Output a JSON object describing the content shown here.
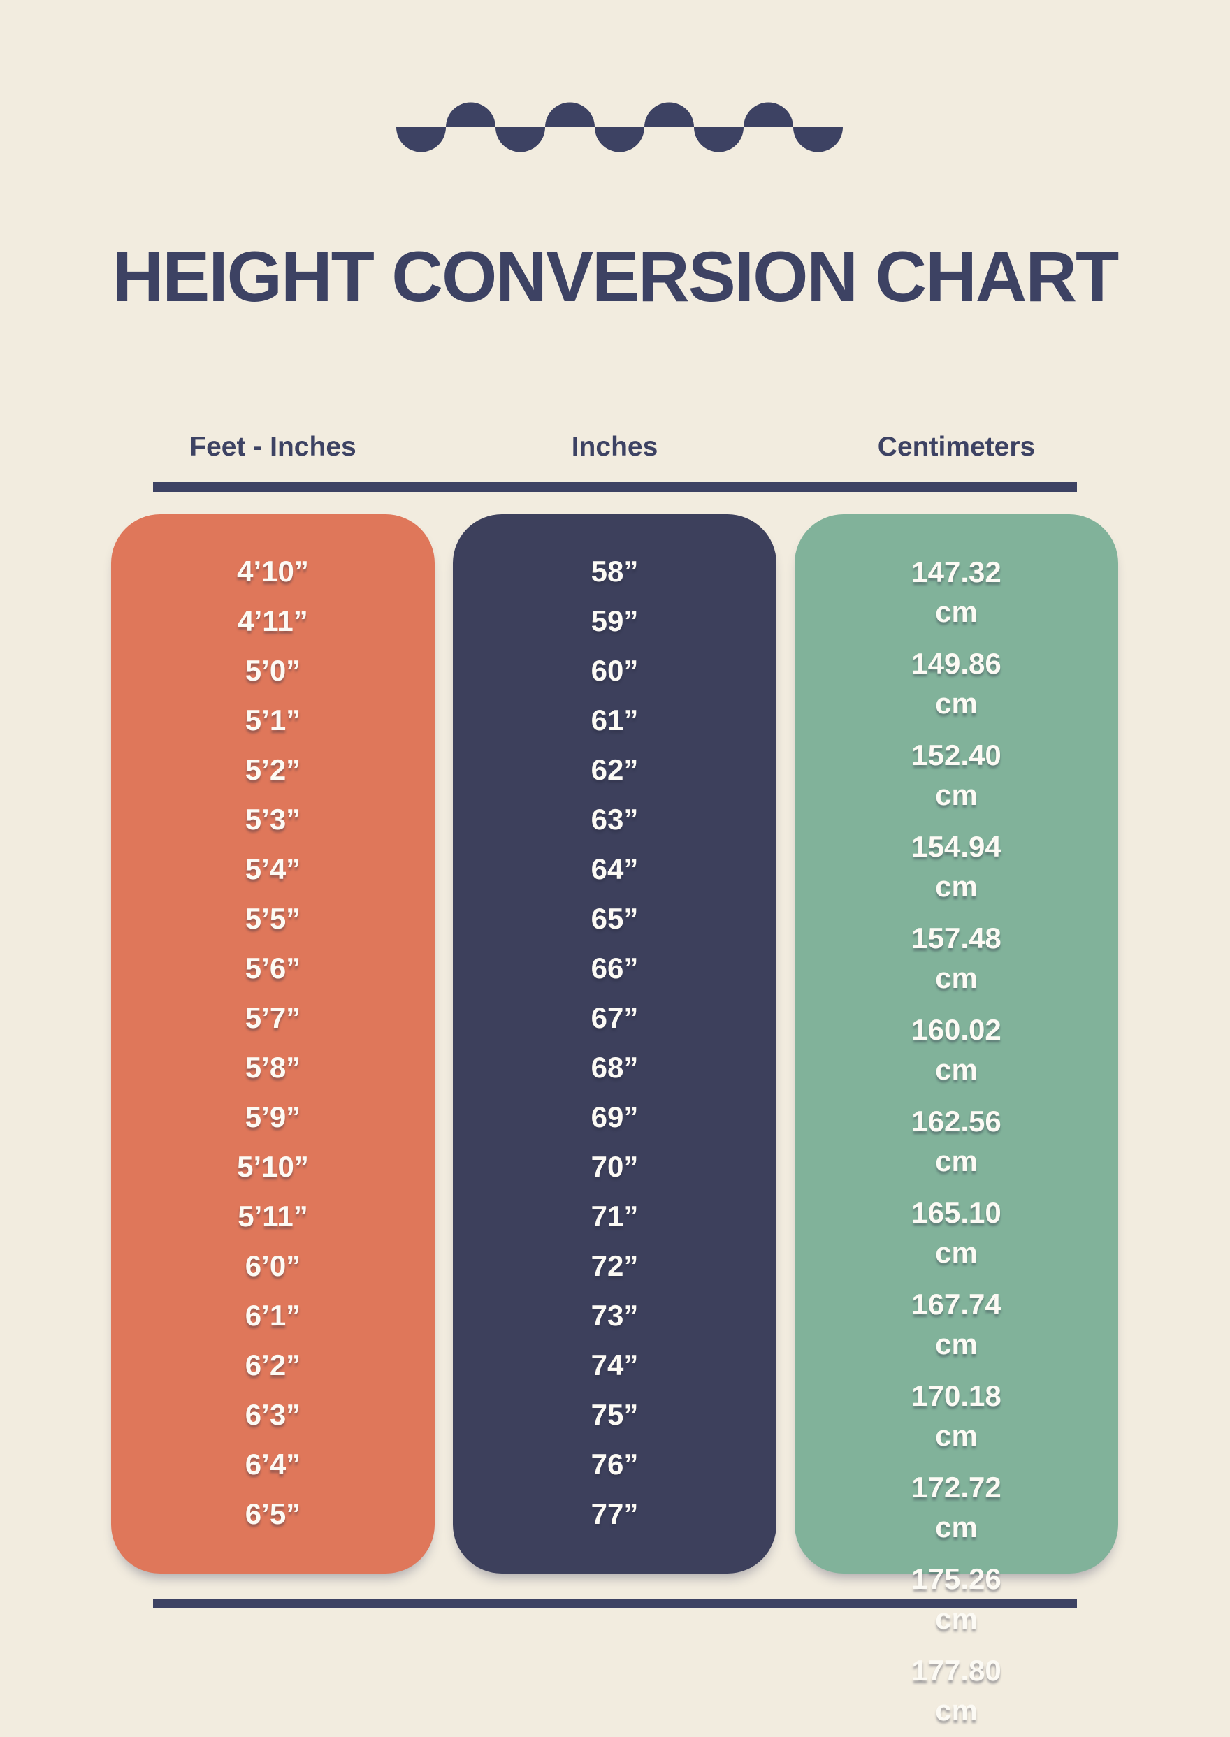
{
  "title": "HEIGHT CONVERSION CHART",
  "colors": {
    "background": "#f2ecdf",
    "ink": "#3d4263",
    "terracotta": "#df775a",
    "navy": "#3d405c",
    "green": "#81b29a",
    "text_on_color": "#fcfaf4"
  },
  "decor": {
    "wave_icon": "wave-scallop",
    "wave_color": "#3d4263"
  },
  "table": {
    "headers": [
      {
        "id": "feet_inches",
        "label": "Feet - Inches"
      },
      {
        "id": "inches",
        "label": "Inches"
      },
      {
        "id": "centimeters",
        "label": "Centimeters"
      }
    ],
    "feet_inches": [
      "4’10”",
      "4’11”",
      "5’0”",
      "5’1”",
      "5’2”",
      "5’3”",
      "5’4”",
      "5’5”",
      "5’6”",
      "5’7”",
      "5’8”",
      "5’9”",
      "5’10”",
      "5’11”",
      "6’0”",
      "6’1”",
      "6’2”",
      "6’3”",
      "6’4”",
      "6’5”"
    ],
    "inches": [
      "58”",
      "59”",
      "60”",
      "61”",
      "62”",
      "63”",
      "64”",
      "65”",
      "66”",
      "67”",
      "68”",
      "69”",
      "70”",
      "71”",
      "72”",
      "73”",
      "74”",
      "75”",
      "76”",
      "77”"
    ],
    "centimeters": [
      [
        "147.32",
        "cm"
      ],
      [
        "149.86",
        "cm"
      ],
      [
        "152.40",
        "cm"
      ],
      [
        "154.94",
        "cm"
      ],
      [
        "157.48",
        "cm"
      ],
      [
        "160.02",
        "cm"
      ],
      [
        "162.56",
        "cm"
      ],
      [
        "165.10",
        "cm"
      ],
      [
        "167.74",
        "cm"
      ],
      [
        "170.18",
        "cm"
      ],
      [
        "172.72",
        "cm"
      ],
      [
        "175.26",
        "cm"
      ],
      [
        "177.80",
        "cm"
      ]
    ]
  },
  "chart_data": {
    "type": "table",
    "title": "HEIGHT CONVERSION CHART",
    "columns": [
      "Feet - Inches",
      "Inches",
      "Centimeters"
    ],
    "feet_inches": [
      "4’10”",
      "4’11”",
      "5’0”",
      "5’1”",
      "5’2”",
      "5’3”",
      "5’4”",
      "5’5”",
      "5’6”",
      "5’7”",
      "5’8”",
      "5’9”",
      "5’10”",
      "5’11”",
      "6’0”",
      "6’1”",
      "6’2”",
      "6’3”",
      "6’4”",
      "6’5”"
    ],
    "inches": [
      58,
      59,
      60,
      61,
      62,
      63,
      64,
      65,
      66,
      67,
      68,
      69,
      70,
      71,
      72,
      73,
      74,
      75,
      76,
      77
    ],
    "centimeters_visible": [
      147.32,
      149.86,
      152.4,
      154.94,
      157.48,
      160.02,
      162.56,
      165.1,
      167.74,
      170.18,
      172.72,
      175.26,
      177.8
    ],
    "centimeter_unit": "cm"
  }
}
